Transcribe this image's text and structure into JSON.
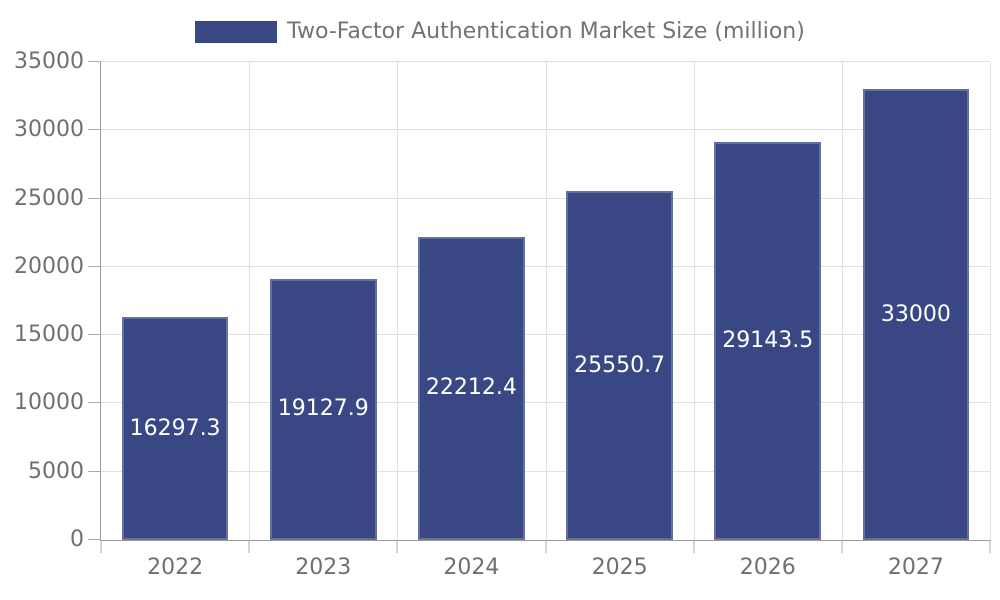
{
  "legend": {
    "label": "Two-Factor Authentication Market Size (million)"
  },
  "chart_data": {
    "type": "bar",
    "title": "Two-Factor Authentication Market Size (million)",
    "categories": [
      "2022",
      "2023",
      "2024",
      "2025",
      "2026",
      "2027"
    ],
    "values": [
      16297.3,
      19127.9,
      22212.4,
      25550.7,
      29143.5,
      33000
    ],
    "value_labels": [
      "16297.3",
      "19127.9",
      "22212.4",
      "25550.7",
      "29143.5",
      "33000"
    ],
    "xlabel": "",
    "ylabel": "",
    "ylim": [
      0,
      35000
    ],
    "ytick_step": 5000,
    "ytick_labels": [
      "0",
      "5000",
      "10000",
      "15000",
      "20000",
      "25000",
      "30000",
      "35000"
    ],
    "grid": true,
    "legend_position": "top",
    "bar_width_fraction": 0.72,
    "colors": {
      "bar": "#394885",
      "grid": "#e0e0e0",
      "axis": "#999999",
      "tick": "#aaaaaa",
      "label_text": "#707070",
      "legend_text": "#737373",
      "value_text": "#ffffff",
      "background": "#ffffff"
    }
  }
}
